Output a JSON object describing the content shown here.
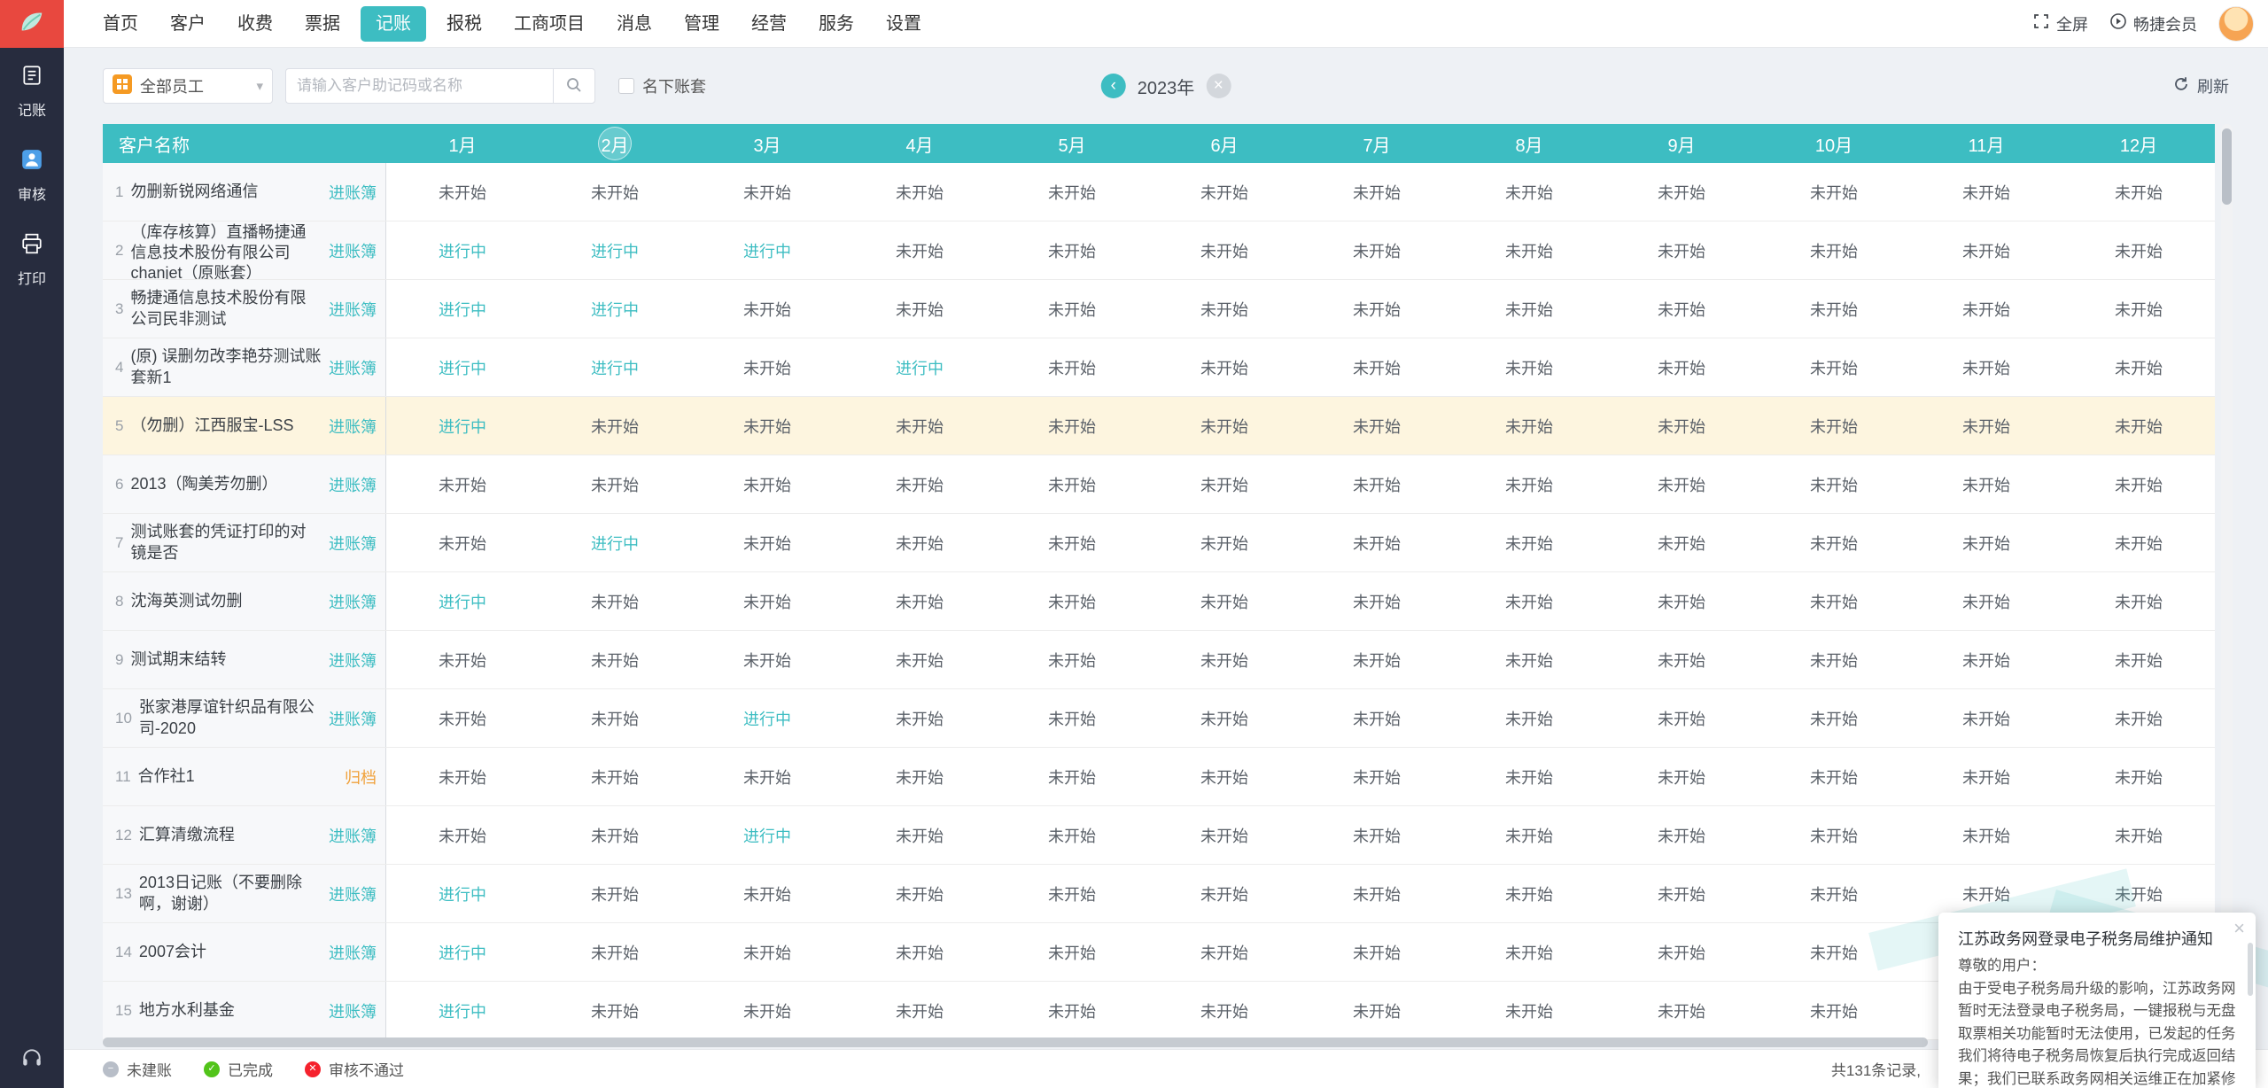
{
  "colors": {
    "accent": "#3dbdc2",
    "sidebar_bg": "#272c3e",
    "logo_bg": "#e8483f",
    "highlight_row": "#fdf5df",
    "in_progress_text": "#3dbdc2",
    "archive_link": "#f0a13a"
  },
  "sidebar": {
    "items": [
      {
        "label": "记账",
        "icon": "ledger-icon"
      },
      {
        "label": "审核",
        "icon": "audit-icon"
      },
      {
        "label": "打印",
        "icon": "printer-icon"
      }
    ]
  },
  "topnav": {
    "items": [
      {
        "label": "首页",
        "active": false
      },
      {
        "label": "客户",
        "active": false
      },
      {
        "label": "收费",
        "active": false
      },
      {
        "label": "票据",
        "active": false
      },
      {
        "label": "记账",
        "active": true
      },
      {
        "label": "报税",
        "active": false
      },
      {
        "label": "工商项目",
        "active": false
      },
      {
        "label": "消息",
        "active": false
      },
      {
        "label": "管理",
        "active": false
      },
      {
        "label": "经营",
        "active": false
      },
      {
        "label": "服务",
        "active": false
      },
      {
        "label": "设置",
        "active": false
      }
    ],
    "fullscreen_label": "全屏",
    "member_label": "畅捷会员"
  },
  "toolbar": {
    "staff_filter_value": "全部员工",
    "search_placeholder": "请输入客户助记码或名称",
    "checkbox_label": "名下账套",
    "year_label": "2023年",
    "refresh_label": "刷新"
  },
  "table": {
    "name_header": "客户名称",
    "months": [
      "1月",
      "2月",
      "3月",
      "4月",
      "5月",
      "6月",
      "7月",
      "8月",
      "9月",
      "10月",
      "11月",
      "12月"
    ],
    "active_month_index": 1,
    "status_labels": {
      "not_started": "未开始",
      "in_progress": "进行中"
    },
    "rows": [
      {
        "num": 1,
        "name": "勿删新锐网络通信",
        "action": "进账簿",
        "action_style": "teal",
        "highlight": false,
        "in_progress_months": []
      },
      {
        "num": 2,
        "name": "（库存核算）直播畅捷通信息技术股份有限公司chanjet（原账套）",
        "action": "进账簿",
        "action_style": "teal",
        "highlight": false,
        "in_progress_months": [
          1,
          2,
          3
        ]
      },
      {
        "num": 3,
        "name": "畅捷通信息技术股份有限公司民非测试",
        "action": "进账簿",
        "action_style": "teal",
        "highlight": false,
        "in_progress_months": [
          1,
          2
        ]
      },
      {
        "num": 4,
        "name": "(原) 误删勿改李艳芬测试账套新1",
        "action": "进账簿",
        "action_style": "teal",
        "highlight": false,
        "in_progress_months": [
          1,
          2,
          4
        ]
      },
      {
        "num": 5,
        "name": "（勿删）江西服宝-LSS",
        "action": "进账簿",
        "action_style": "teal",
        "highlight": true,
        "in_progress_months": [
          1
        ]
      },
      {
        "num": 6,
        "name": "2013（陶美芳勿删）",
        "action": "进账簿",
        "action_style": "teal",
        "highlight": false,
        "in_progress_months": []
      },
      {
        "num": 7,
        "name": "测试账套的凭证打印的对镜是否",
        "action": "进账簿",
        "action_style": "teal",
        "highlight": false,
        "in_progress_months": [
          2
        ]
      },
      {
        "num": 8,
        "name": "沈海英测试勿删",
        "action": "进账簿",
        "action_style": "teal",
        "highlight": false,
        "in_progress_months": [
          1
        ]
      },
      {
        "num": 9,
        "name": "测试期末结转",
        "action": "进账簿",
        "action_style": "teal",
        "highlight": false,
        "in_progress_months": []
      },
      {
        "num": 10,
        "name": "张家港厚谊针织品有限公司-2020",
        "action": "进账簿",
        "action_style": "teal",
        "highlight": false,
        "in_progress_months": [
          3
        ]
      },
      {
        "num": 11,
        "name": "合作社1",
        "action": "归档",
        "action_style": "orange",
        "highlight": false,
        "in_progress_months": []
      },
      {
        "num": 12,
        "name": "汇算清缴流程",
        "action": "进账簿",
        "action_style": "teal",
        "highlight": false,
        "in_progress_months": [
          3
        ]
      },
      {
        "num": 13,
        "name": "2013日记账（不要删除啊，谢谢）",
        "action": "进账簿",
        "action_style": "teal",
        "highlight": false,
        "in_progress_months": [
          1
        ]
      },
      {
        "num": 14,
        "name": "2007会计",
        "action": "进账簿",
        "action_style": "teal",
        "highlight": false,
        "in_progress_months": [
          1
        ]
      },
      {
        "num": 15,
        "name": "地方水利基金",
        "action": "进账簿",
        "action_style": "teal",
        "highlight": false,
        "in_progress_months": [
          1
        ]
      }
    ]
  },
  "statusbar": {
    "legend": [
      {
        "label": "未建账",
        "glyph": "−",
        "color": "#b8bec8"
      },
      {
        "label": "已完成",
        "glyph": "✓",
        "color": "#52c41a"
      },
      {
        "label": "审核不通过",
        "glyph": "✕",
        "color": "#f5222d"
      }
    ],
    "total_label": "共131条记录,"
  },
  "notice": {
    "title": "江苏政务网登录电子税务局维护通知",
    "greeting": "尊敬的用户：",
    "body": "由于受电子税务局升级的影响，江苏政务网暂时无法登录电子税务局，一键报税与无盘取票相关功能暂时无法使用，已发起的任务我们将待电子税务局恢复后执行完成返回结果；我们已联系政务网相关运维正在加紧修复，恢复时间另行通知。"
  }
}
